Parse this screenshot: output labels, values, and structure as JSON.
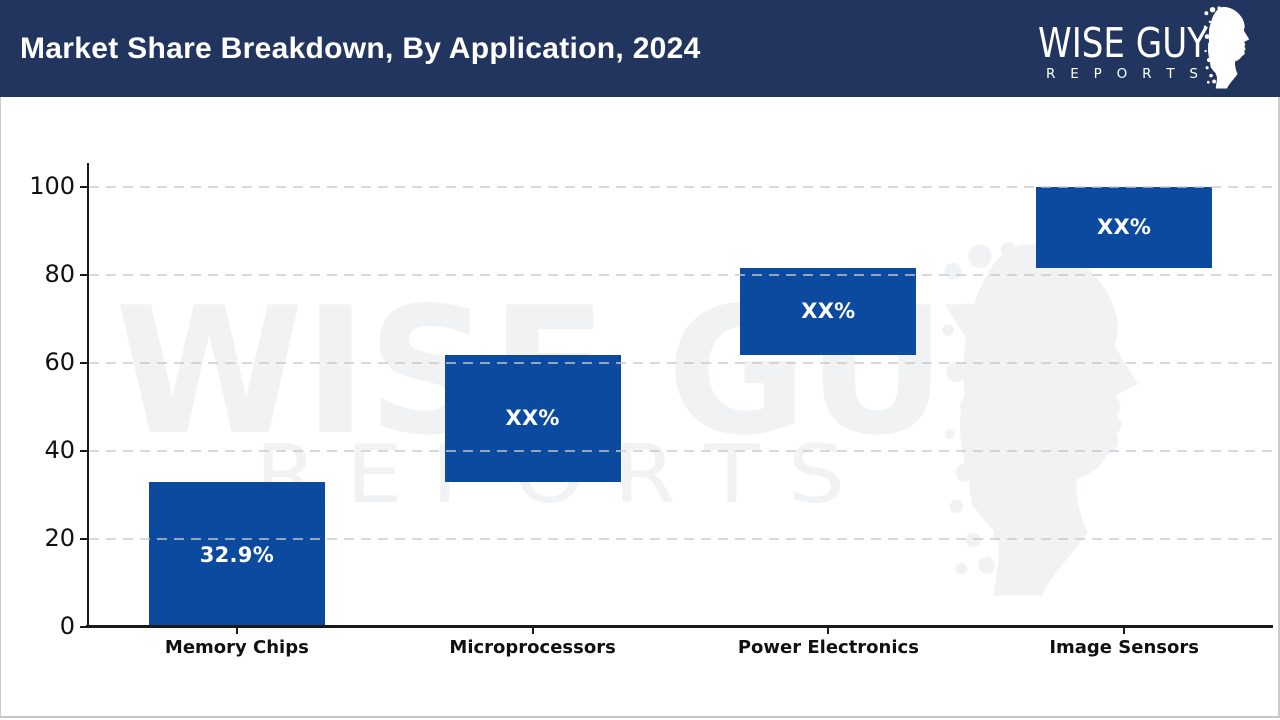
{
  "header": {
    "title": "Market Share Breakdown, By Application, 2024",
    "bg_color": "#22355e",
    "logo": {
      "line1": "WISE GUY",
      "line2": "REPORTS"
    }
  },
  "watermark": {
    "line1": "WISE GUY",
    "line2": "REPORTS"
  },
  "chart_data": {
    "type": "bar",
    "variant": "waterfall",
    "title": "Market Share Breakdown, By Application, 2024",
    "categories": [
      "Memory Chips",
      "Microprocessors",
      "Power Electronics",
      "Image Sensors"
    ],
    "series": [
      {
        "name": "Market Share (%)",
        "segments": [
          {
            "category": "Memory Chips",
            "start": 0,
            "end": 32.9,
            "label": "32.9%"
          },
          {
            "category": "Microprocessors",
            "start": 32.9,
            "end": 61.9,
            "label": "XX%"
          },
          {
            "category": "Power Electronics",
            "start": 61.9,
            "end": 81.6,
            "label": "XX%"
          },
          {
            "category": "Image Sensors",
            "start": 81.6,
            "end": 100,
            "label": "XX%"
          }
        ]
      }
    ],
    "xlabel": "",
    "ylabel": "",
    "ylim": [
      0,
      100
    ],
    "yticks": [
      0,
      20,
      40,
      60,
      80,
      100
    ],
    "grid": {
      "horizontal": true,
      "style": "dashed",
      "color": "#d9d9d9"
    },
    "legend": "none",
    "bar_color": "#0b4a9e",
    "bar_label_color": "#ffffff",
    "axis_color": "#1a1a1a"
  }
}
